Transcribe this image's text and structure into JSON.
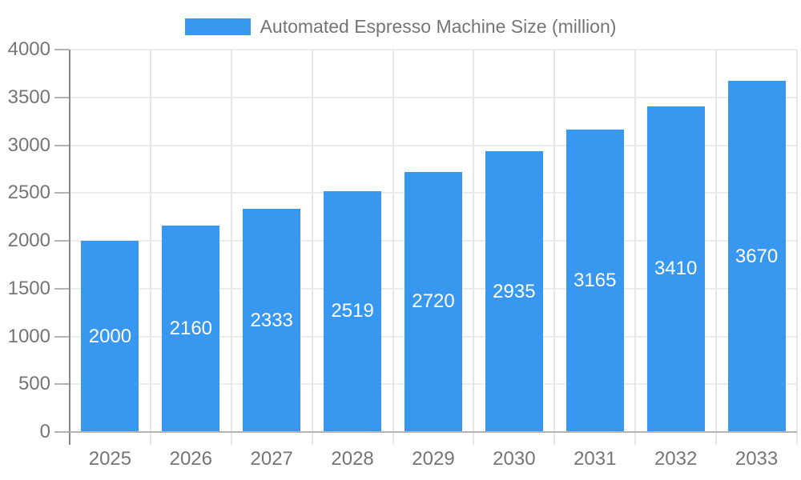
{
  "chart_data": {
    "type": "bar",
    "title": "",
    "legend": {
      "position": "top",
      "label": "Automated Espresso Machine Size (million)"
    },
    "categories": [
      "2025",
      "2026",
      "2027",
      "2028",
      "2029",
      "2030",
      "2031",
      "2032",
      "2033"
    ],
    "values": [
      2000,
      2160,
      2333,
      2519,
      2720,
      2935,
      3165,
      3410,
      3670
    ],
    "xlabel": "",
    "ylabel": "",
    "ylim": [
      0,
      4000
    ],
    "ytick_step": 500,
    "yticks": [
      0,
      500,
      1000,
      1500,
      2000,
      2500,
      3000,
      3500,
      4000
    ],
    "grid": true,
    "value_labels_inside_bars": true,
    "colors": {
      "bar": "#3898ef",
      "bar_value_text": "#ffffff",
      "axis_text": "#757575",
      "legend_text": "#757575",
      "h_gridline": "#ececec",
      "v_gridline": "#e6e6e6",
      "baseline": "#b3b3b3",
      "y_axis_line": "#888888",
      "background": "#ffffff"
    }
  }
}
